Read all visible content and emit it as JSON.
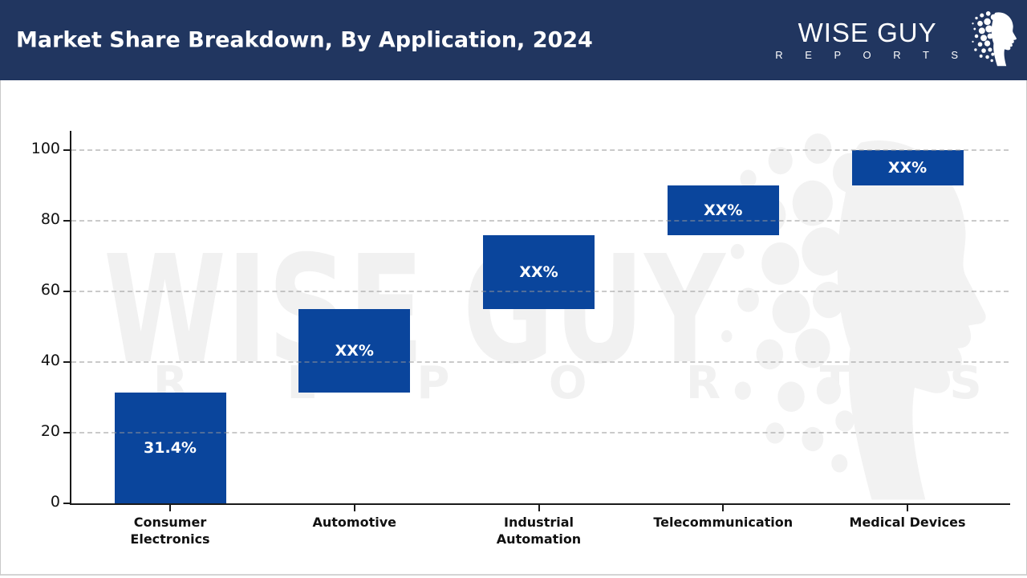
{
  "header": {
    "title": "Market Share Breakdown, By Application, 2024",
    "logo": {
      "line1": "WISE GUY",
      "line2": "R E P O R T S"
    }
  },
  "watermark": {
    "line1": "WISE GUY",
    "line2": "R E P O R T S"
  },
  "chart_data": {
    "type": "bar",
    "subtype": "waterfall",
    "title": "Market Share Breakdown, By Application, 2024",
    "categories": [
      "Consumer Electronics",
      "Automotive",
      "Industrial Automation",
      "Telecommunication",
      "Medical Devices"
    ],
    "category_label_lines": [
      [
        "Consumer",
        "Electronics"
      ],
      [
        "Automotive"
      ],
      [
        "Industrial",
        "Automation"
      ],
      [
        "Telecommunication"
      ],
      [
        "Medical Devices"
      ]
    ],
    "bar_starts": [
      0,
      31.4,
      55,
      76,
      90
    ],
    "bar_ends": [
      31.4,
      55,
      76,
      90,
      100
    ],
    "bar_values": [
      31.4,
      23.6,
      21,
      14,
      10
    ],
    "bar_labels": [
      "31.4%",
      "XX%",
      "XX%",
      "XX%",
      "XX%"
    ],
    "xlabel": "",
    "ylabel": "",
    "ylim": [
      0,
      100
    ],
    "yticks": [
      0,
      20,
      40,
      60,
      80,
      100
    ],
    "grid": "horizontal-dashed",
    "legend": false,
    "colors": {
      "bar": "#0a459c",
      "bar_label": "#ffffff",
      "header": "#213660",
      "grid": "#d6d6d6",
      "axis": "#1a1a1a",
      "tick_label": "#111111",
      "watermark": "#f1f1f1"
    }
  }
}
